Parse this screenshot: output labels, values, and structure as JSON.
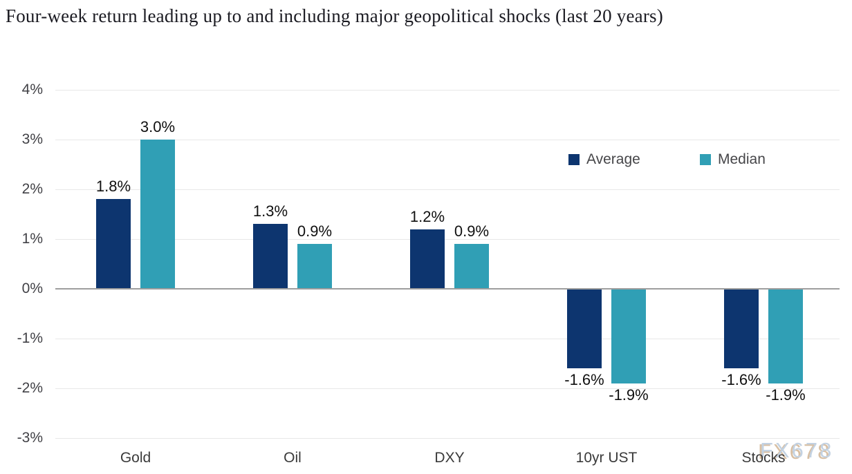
{
  "title": "Four-week return leading up to and including major geopolitical shocks (last 20 years)",
  "watermark": "FX678",
  "colors": {
    "average": "#0d356f",
    "median": "#309fb5",
    "grid": "#e8e8e8",
    "zero_line": "#9e9e9e",
    "axis_text": "#414146",
    "category_text": "#3a3a3a",
    "data_label_text": "#101010",
    "legend_text": "#464649",
    "title_text": "#1b1b22",
    "watermark_blue": "#c3d2e2",
    "watermark_tan": "#d8bfa3"
  },
  "chart_data": {
    "type": "bar",
    "title": "Four-week return leading up to and including major geopolitical shocks (last 20 years)",
    "categories": [
      "Gold",
      "Oil",
      "DXY",
      "10yr UST",
      "Stocks"
    ],
    "series": [
      {
        "name": "Average",
        "values": [
          1.8,
          1.3,
          1.2,
          -1.6,
          -1.6
        ],
        "labels": [
          "1.8%",
          "1.3%",
          "1.2%",
          "-1.6%",
          "-1.6%"
        ],
        "color": "#0d356f"
      },
      {
        "name": "Median",
        "values": [
          3.0,
          0.9,
          0.9,
          -1.9,
          -1.9
        ],
        "labels": [
          "3.0%",
          "0.9%",
          "0.9%",
          "-1.9%",
          "-1.9%"
        ],
        "color": "#309fb5"
      }
    ],
    "y_ticks": [
      "4%",
      "3%",
      "2%",
      "1%",
      "0%",
      "-1%",
      "-2%",
      "-3%"
    ],
    "y_tick_values": [
      4,
      3,
      2,
      1,
      0,
      -1,
      -2,
      -3
    ],
    "ylim": [
      -3,
      4
    ],
    "xlabel": "",
    "ylabel": "",
    "grid": true,
    "legend_position": "inside-upper-right"
  }
}
